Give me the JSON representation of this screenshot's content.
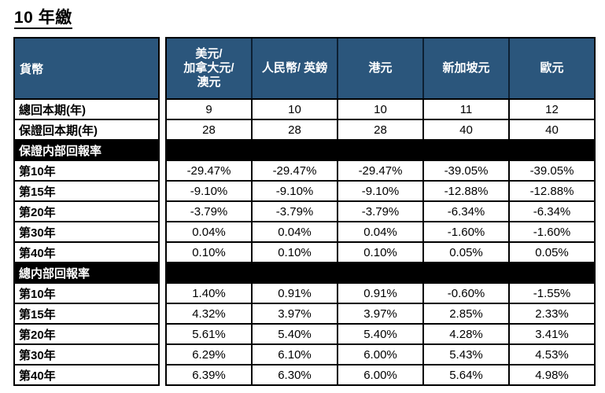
{
  "page_title": "10 年繳",
  "colors": {
    "header_bg": "#2b567c",
    "header_text": "#ffffff",
    "section_bg": "#000000",
    "section_text": "#ffffff",
    "border": "#000000",
    "page_bg": "#ffffff"
  },
  "table": {
    "label_header": "貨幣",
    "columns": [
      "美元/\n加拿大元/\n澳元",
      "人民幣/ 英鎊",
      "港元",
      "新加坡元",
      "歐元"
    ],
    "rows": [
      {
        "type": "data",
        "label": "總回本期(年)",
        "values": [
          "9",
          "10",
          "10",
          "11",
          "12"
        ]
      },
      {
        "type": "data",
        "label": "保證回本期(年)",
        "values": [
          "28",
          "28",
          "28",
          "40",
          "40"
        ]
      },
      {
        "type": "section",
        "label": "保證内部回報率"
      },
      {
        "type": "data",
        "label": "第10年",
        "values": [
          "-29.47%",
          "-29.47%",
          "-29.47%",
          "-39.05%",
          "-39.05%"
        ]
      },
      {
        "type": "data",
        "label": "第15年",
        "values": [
          "-9.10%",
          "-9.10%",
          "-9.10%",
          "-12.88%",
          "-12.88%"
        ]
      },
      {
        "type": "data",
        "label": "第20年",
        "values": [
          "-3.79%",
          "-3.79%",
          "-3.79%",
          "-6.34%",
          "-6.34%"
        ]
      },
      {
        "type": "data",
        "label": "第30年",
        "values": [
          "0.04%",
          "0.04%",
          "0.04%",
          "-1.60%",
          "-1.60%"
        ]
      },
      {
        "type": "data",
        "label": "第40年",
        "values": [
          "0.10%",
          "0.10%",
          "0.10%",
          "0.05%",
          "0.05%"
        ]
      },
      {
        "type": "section",
        "label": "總内部回報率"
      },
      {
        "type": "data",
        "label": "第10年",
        "values": [
          "1.40%",
          "0.91%",
          "0.91%",
          "-0.60%",
          "-1.55%"
        ]
      },
      {
        "type": "data",
        "label": "第15年",
        "values": [
          "4.32%",
          "3.97%",
          "3.97%",
          "2.85%",
          "2.33%"
        ]
      },
      {
        "type": "data",
        "label": "第20年",
        "values": [
          "5.61%",
          "5.40%",
          "5.40%",
          "4.28%",
          "3.41%"
        ]
      },
      {
        "type": "data",
        "label": "第30年",
        "values": [
          "6.29%",
          "6.10%",
          "6.00%",
          "5.43%",
          "4.53%"
        ]
      },
      {
        "type": "data",
        "label": "第40年",
        "values": [
          "6.39%",
          "6.30%",
          "6.00%",
          "5.64%",
          "4.98%"
        ]
      }
    ]
  }
}
